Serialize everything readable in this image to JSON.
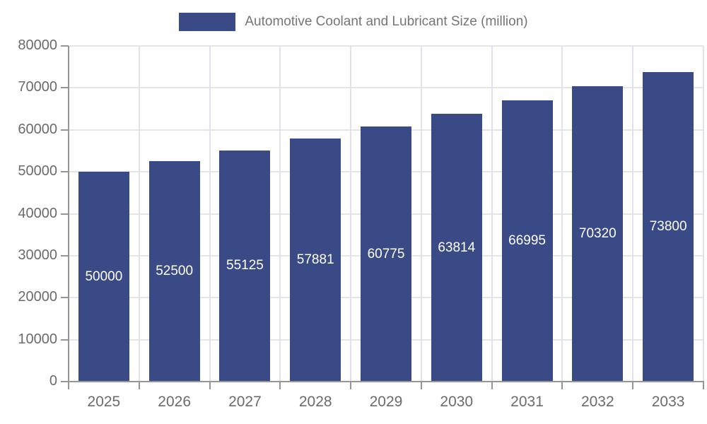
{
  "legend": {
    "label": "Automotive Coolant and Lubricant Size (million)"
  },
  "colors": {
    "bar": "#3a4a87",
    "grid_horizontal": "#e5e5e5",
    "grid_vertical": "#e1e1ea",
    "axis": "#969696",
    "tick_label": "#6b6b6b",
    "legend_text": "#757575",
    "value_label": "#ffffff"
  },
  "chart_data": {
    "type": "bar",
    "title": "Automotive Coolant and Lubricant Size (million)",
    "categories": [
      "2025",
      "2026",
      "2027",
      "2028",
      "2029",
      "2030",
      "2031",
      "2032",
      "2033"
    ],
    "values": [
      50000,
      52500,
      55125,
      57881,
      60775,
      63814,
      66995,
      70320,
      73800
    ],
    "value_labels": [
      "50000",
      "52500",
      "55125",
      "57881",
      "60775",
      "63814",
      "66995",
      "70320",
      "73800"
    ],
    "xlabel": "",
    "ylabel": "",
    "ylim": [
      0,
      80000
    ],
    "ytick_step": 10000,
    "ytick_labels": [
      "0",
      "10000",
      "20000",
      "30000",
      "40000",
      "50000",
      "60000",
      "70000",
      "80000"
    ],
    "grid": true,
    "legend_position": "top-center",
    "value_label_position": "centered-inside-bar"
  }
}
